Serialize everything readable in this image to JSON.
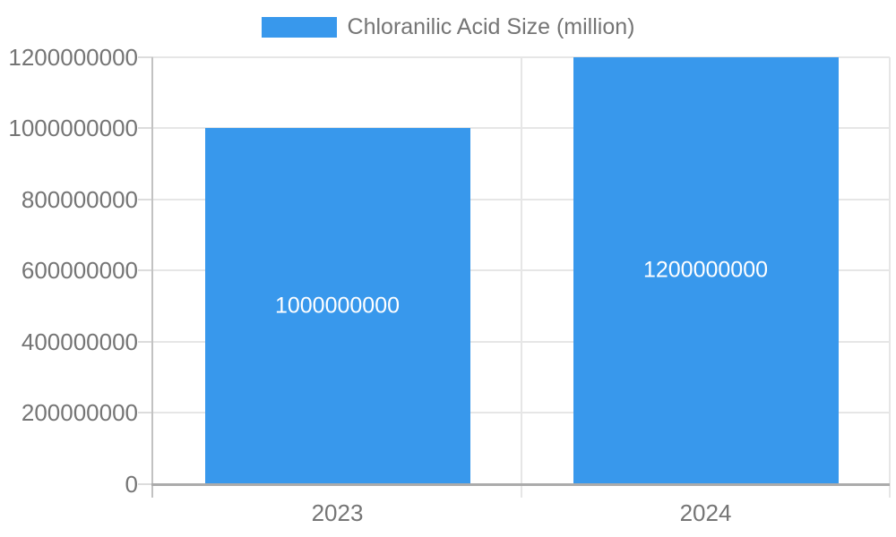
{
  "legend": {
    "label": "Chloranilic Acid Size (million)"
  },
  "colors": {
    "bar": "#3898ec",
    "axis_label_text": "#757575",
    "legend_text": "#757575",
    "bar_label_text": "#ffffff",
    "gridline": "#e6e6e6",
    "tick_line": "#dcdcdc",
    "baseline": "#ababab",
    "y_axis_line": "#c2c2c2",
    "background": "#ffffff"
  },
  "chart_data": {
    "type": "bar",
    "title": "",
    "xlabel": "",
    "ylabel": "",
    "categories": [
      "2023",
      "2024"
    ],
    "series": [
      {
        "name": "Chloranilic Acid Size (million)",
        "values": [
          1000000000,
          1200000000
        ]
      }
    ],
    "bar_value_labels": [
      "1000000000",
      "1200000000"
    ],
    "yticks": [
      0,
      200000000,
      400000000,
      600000000,
      800000000,
      1000000000,
      1200000000
    ],
    "ytick_labels": [
      "0",
      "200000000",
      "400000000",
      "600000000",
      "800000000",
      "1000000000",
      "1200000000"
    ],
    "ylim": [
      0,
      1200000000
    ],
    "grid": true,
    "legend_position": "top"
  }
}
